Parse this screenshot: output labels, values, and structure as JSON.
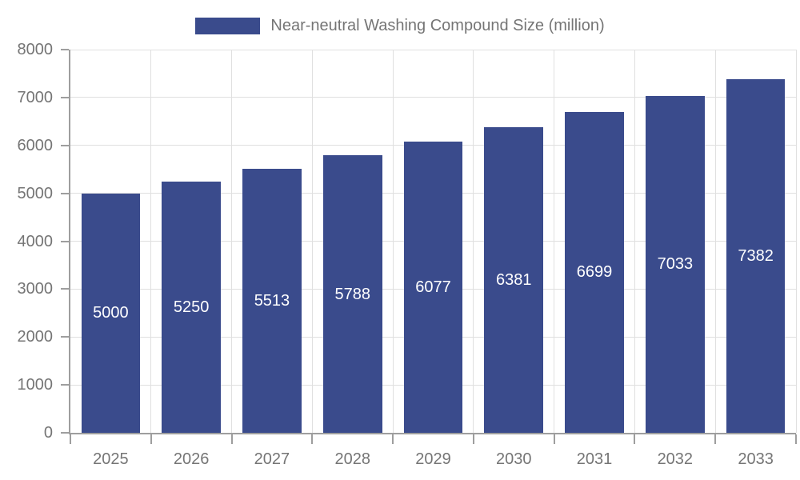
{
  "chart_data": {
    "type": "bar",
    "title": "",
    "legend": "Near-neutral Washing Compound Size (million)",
    "legend_position": "top",
    "categories": [
      "2025",
      "2026",
      "2027",
      "2028",
      "2029",
      "2030",
      "2031",
      "2032",
      "2033"
    ],
    "values": [
      5000,
      5250,
      5513,
      5788,
      6077,
      6381,
      6699,
      7033,
      7382
    ],
    "xlabel": "",
    "ylabel": "",
    "ylim": [
      0,
      8000
    ],
    "ytick_step": 1000,
    "yticks": [
      0,
      1000,
      2000,
      3000,
      4000,
      5000,
      6000,
      7000,
      8000
    ],
    "grid": true,
    "bar_labels_shown": true,
    "colors": {
      "bar": "#3a4b8c",
      "bar_label_text": "#ffffff",
      "axis_line": "#9e9e9e",
      "gridline": "#e0e0e0",
      "tick_text": "#757575",
      "legend_text": "#757575",
      "background": "#ffffff"
    }
  }
}
